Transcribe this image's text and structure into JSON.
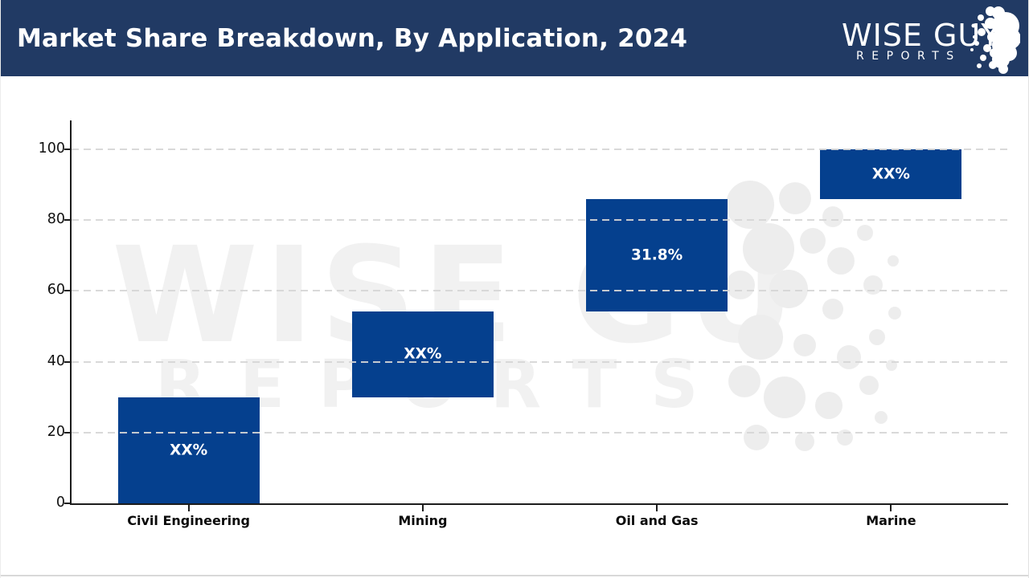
{
  "header": {
    "title": "Market Share Breakdown, By Application, 2024",
    "logo": {
      "wordmark": "WISE GUY",
      "subtext": "REPORTS"
    }
  },
  "watermark": {
    "line1": "WISE GU",
    "line2": "REPORTS"
  },
  "chart_data": {
    "type": "bar",
    "subtype": "floating-segment-waterfall",
    "title": "Market Share Breakdown, By Application, 2024",
    "categories": [
      "Civil Engineering",
      "Mining",
      "Oil and Gas",
      "Marine"
    ],
    "series": [
      {
        "name": "Market share by application",
        "segments": [
          {
            "category": "Civil Engineering",
            "start": 0,
            "end": 30,
            "label": "XX%"
          },
          {
            "category": "Mining",
            "start": 30,
            "end": 54.2,
            "label": "XX%"
          },
          {
            "category": "Oil and Gas",
            "start": 54.2,
            "end": 86,
            "label": "31.8%"
          },
          {
            "category": "Marine",
            "start": 86,
            "end": 100,
            "label": "XX%"
          }
        ]
      }
    ],
    "xlabel": "",
    "ylabel": "",
    "yticks": [
      0,
      20,
      40,
      60,
      80,
      100
    ],
    "ylim": [
      0,
      107
    ],
    "grid": "horizontal-dashed",
    "legend": "none",
    "colors": {
      "bar": "#05408e",
      "bar_label": "#ffffff",
      "grid": "#d9d9d9",
      "axis": "#1c1c1c",
      "header_bg": "#213a64",
      "header_text": "#ffffff",
      "watermark": "#f1f1f1"
    }
  }
}
